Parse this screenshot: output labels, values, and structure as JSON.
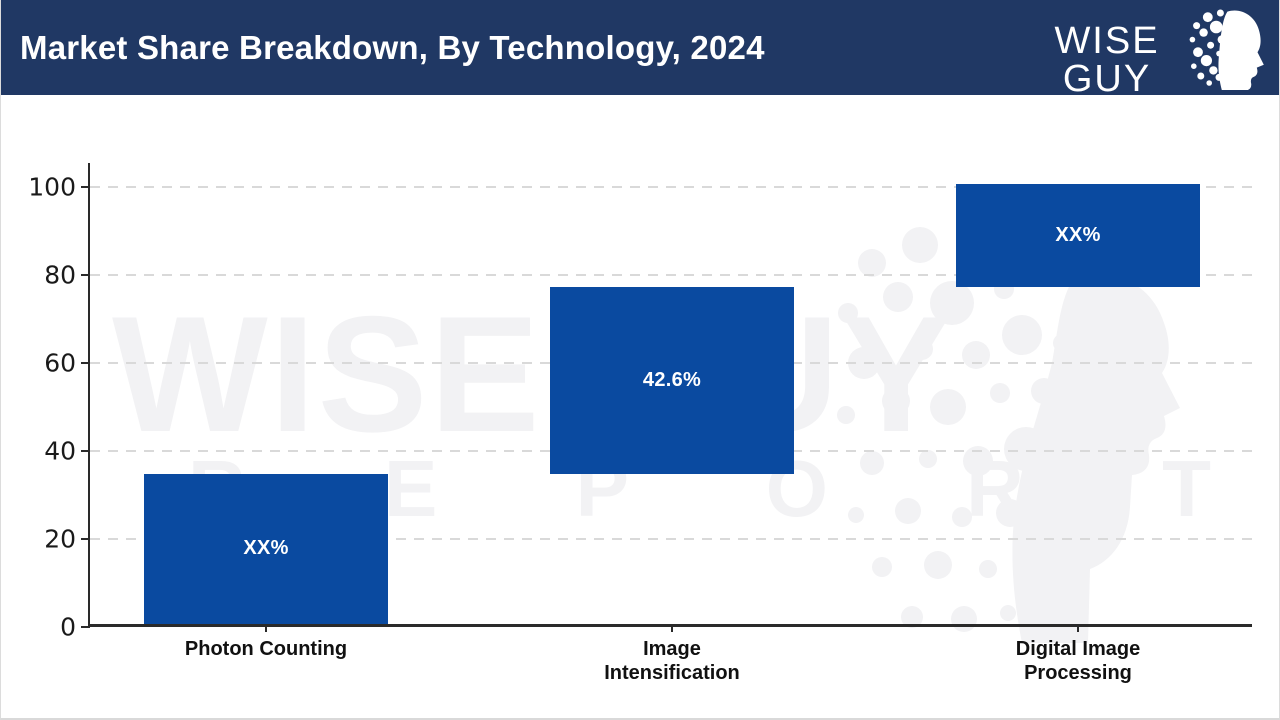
{
  "header": {
    "title": "Market Share Breakdown, By Technology, 2024",
    "logo": {
      "name": "WISE GUY",
      "tagline": "R E P O R T S"
    }
  },
  "watermark": {
    "line1": "WISE GUY",
    "line2": "R E P O R T S"
  },
  "chart_data": {
    "type": "bar",
    "subtype": "stacked-waterfall-floating-segments",
    "title": "Market Share Breakdown, By Technology, 2024",
    "categories": [
      "Photon Counting",
      "Image\nIntensification",
      "Digital Image\nProcessing"
    ],
    "segments": [
      {
        "category": "Photon Counting",
        "label": "XX%",
        "start": 0,
        "end": 34.1
      },
      {
        "category": "Image Intensification",
        "label": "42.6%",
        "start": 34.1,
        "end": 76.7
      },
      {
        "category": "Digital Image Processing",
        "label": "XX%",
        "start": 76.7,
        "end": 100
      }
    ],
    "y_ticks": [
      0,
      20,
      40,
      60,
      80,
      100
    ],
    "ylim": [
      0,
      105.5
    ],
    "xlabel": "",
    "ylabel": "",
    "grid": "dashed-horizontal",
    "legend": "none",
    "bar_color": "#0a4aa0",
    "bar_label_color": "#ffffff"
  },
  "colors": {
    "header_bg": "#203864",
    "bar_blue": "#0a4aa0",
    "page_bg": "#ffffff",
    "watermark": "#f2f2f4",
    "gridline": "#d9d9d9",
    "axis": "#2a2a2a",
    "tick_text": "#1a1a1a"
  }
}
